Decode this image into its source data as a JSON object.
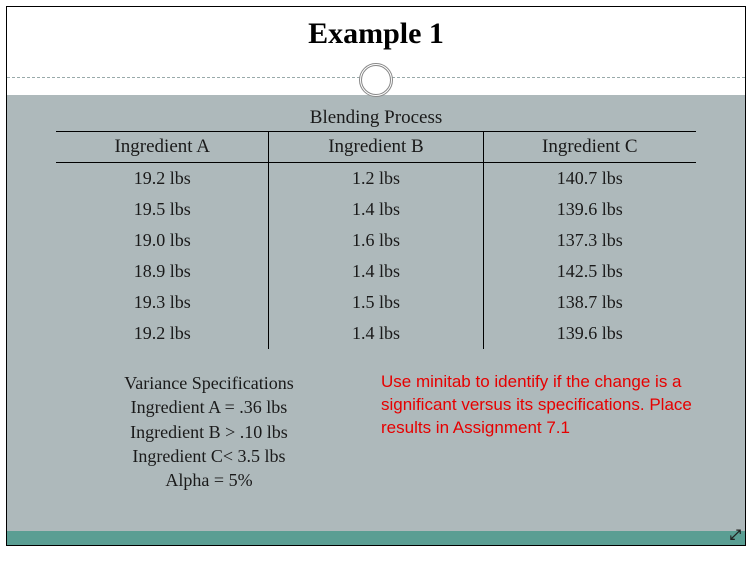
{
  "title": "Example 1",
  "table": {
    "caption": "Blending Process",
    "columns": [
      "Ingredient A",
      "Ingredient B",
      "Ingredient C"
    ],
    "rows": [
      [
        "19.2 lbs",
        "1.2 lbs",
        "140.7 lbs"
      ],
      [
        "19.5 lbs",
        "1.4 lbs",
        "139.6 lbs"
      ],
      [
        "19.0 lbs",
        "1.6 lbs",
        "137.3 lbs"
      ],
      [
        "18.9 lbs",
        "1.4 lbs",
        "142.5 lbs"
      ],
      [
        "19.3 lbs",
        "1.5 lbs",
        "138.7 lbs"
      ],
      [
        "19.2 lbs",
        "1.4 lbs",
        "139.6 lbs"
      ]
    ]
  },
  "specs": {
    "heading": "Variance Specifications",
    "lines": [
      "Ingredient A = .36 lbs",
      "Ingredient B > .10 lbs",
      "Ingredient C< 3.5 lbs",
      "Alpha = 5%"
    ]
  },
  "instruction": "Use minitab to identify if the change is a significant versus its specifications. Place results in Assignment 7.1",
  "colors": {
    "panel_bg": "#aeb9bb",
    "footer_bg": "#5a9e93",
    "text": "#1a1a1a",
    "accent_red": "#e60000",
    "border": "#000000",
    "dash": "#99aaaa"
  }
}
